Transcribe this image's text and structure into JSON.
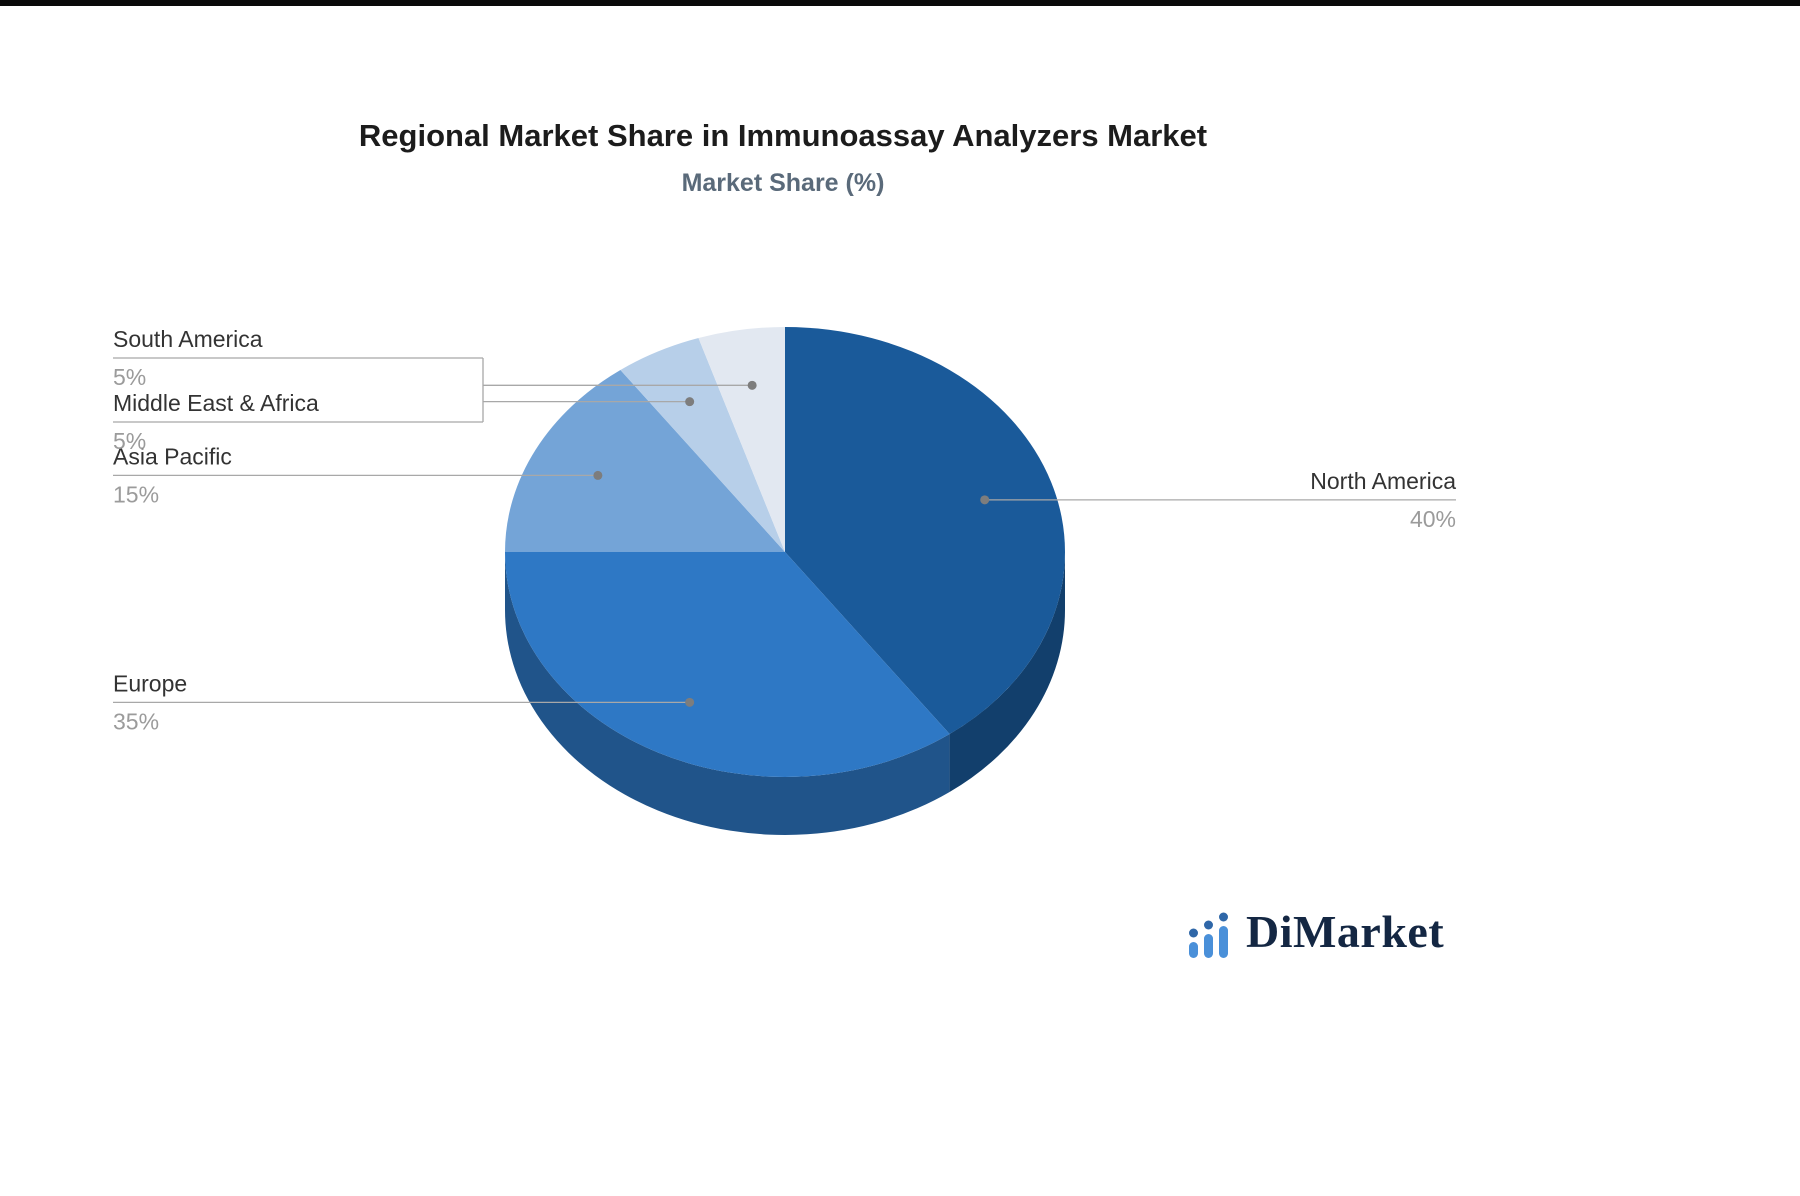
{
  "chart_data": {
    "type": "pie",
    "title": "Regional Market Share in Immunoassay Analyzers Market",
    "subtitle": "Market Share (%)",
    "unit": "%",
    "effect": "3d",
    "start_angle_deg": -90,
    "direction": "clockwise",
    "legend": "none",
    "labels": [
      "North America",
      "Europe",
      "Asia Pacific",
      "Middle East & Africa",
      "South America"
    ],
    "values": [
      40,
      35,
      15,
      5,
      5
    ],
    "value_labels": [
      "40%",
      "35%",
      "15%",
      "5%",
      "5%"
    ],
    "colors": [
      "#1a5a9a",
      "#2e78c5",
      "#74a4d7",
      "#b7cfe9",
      "#e2e8f1"
    ],
    "label_color": "#333333",
    "value_color": "#9b9b9b",
    "leader_line_color": "#a8a8a8",
    "leader_dot_color": "#7d7d7d"
  },
  "brand": {
    "name": "DiMarket",
    "icon": "bar-chart-icon",
    "color": "#142743",
    "icon_color": "#4a90d9",
    "icon_dot_color": "#2f67a8"
  }
}
